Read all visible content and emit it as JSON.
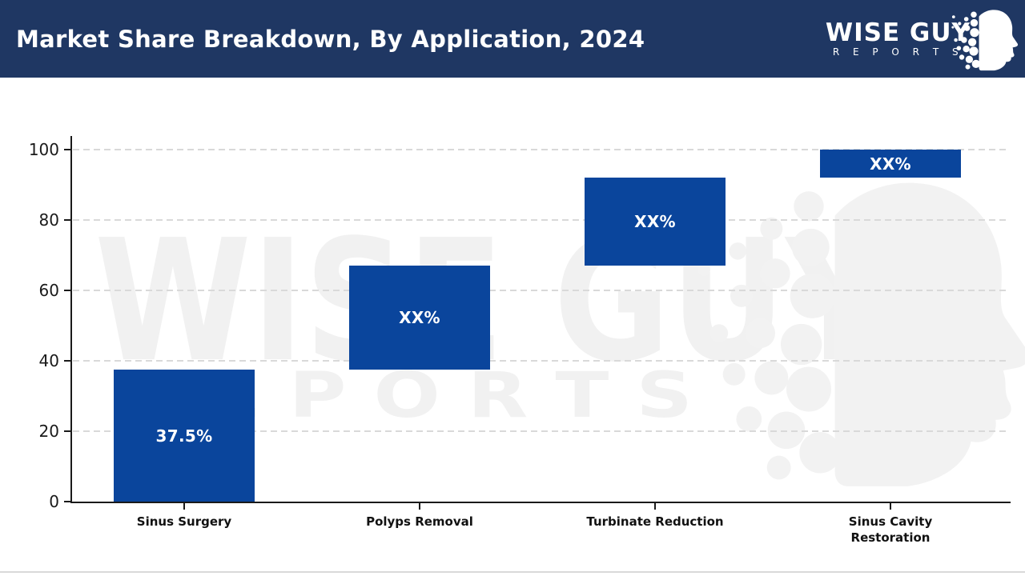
{
  "header": {
    "bg_color": "#1f3763",
    "title": "Market Share Breakdown, By Application, 2024",
    "logo": {
      "primary": "WISE GUY",
      "secondary": "R E P O R T S"
    }
  },
  "watermark": {
    "primary": "WISE GUY.",
    "secondary": "R E P O R T S"
  },
  "chart_data": {
    "type": "bar",
    "subtype": "waterfall",
    "title": "Market Share Breakdown, By Application, 2024",
    "categories": [
      "Sinus Surgery",
      "Polyps Removal",
      "Turbinate Reduction",
      "Sinus Cavity Restoration"
    ],
    "segments": [
      {
        "category": "Sinus Surgery",
        "start": 0,
        "end": 37.5,
        "label": "37.5%"
      },
      {
        "category": "Polyps Removal",
        "start": 37.5,
        "end": 67,
        "label": "XX%"
      },
      {
        "category": "Turbinate Reduction",
        "start": 67,
        "end": 92,
        "label": "XX%"
      },
      {
        "category": "Sinus Cavity Restoration",
        "start": 92,
        "end": 100,
        "label": "XX%"
      }
    ],
    "values_estimated": [
      37.5,
      29.5,
      25,
      8
    ],
    "y_axis": {
      "ticks": [
        0,
        20,
        40,
        60,
        80,
        100
      ],
      "range": [
        0,
        100
      ]
    },
    "grid": {
      "horizontal": true,
      "style": "dashed",
      "color": "#d9d9d9"
    },
    "colors": {
      "bar": "#0a459c",
      "bar_label": "#ffffff",
      "axis": "#1a1a1a",
      "header_bg": "#1f3763"
    },
    "legend": null
  }
}
